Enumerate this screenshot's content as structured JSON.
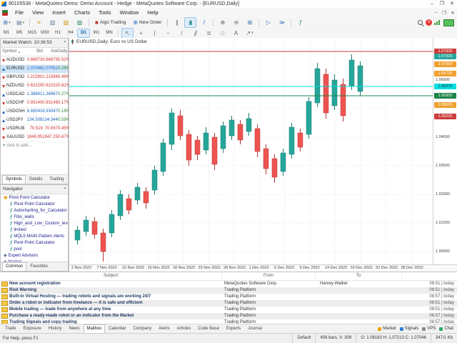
{
  "window": {
    "title": "90105538 - MetaQuotes-Demo: Demo Account - Hedge - MetaQuotes Software Corp. - [EURUSD,Daily]",
    "minimize": "–",
    "maximize": "❐",
    "close": "✕"
  },
  "menu": {
    "items": [
      "File",
      "View",
      "Insert",
      "Charts",
      "Tools",
      "Window",
      "Help"
    ]
  },
  "toolbar_main": {
    "algo_trading_label": "Algo Trading",
    "new_order_label": "New Order",
    "notification_count": "9"
  },
  "timeframes": {
    "buttons": [
      "M1",
      "M5",
      "M15",
      "M30",
      "H1",
      "H4",
      "D1",
      "W1",
      "MN"
    ],
    "active": "D1"
  },
  "icons": {
    "new-chart": "⊞",
    "profiles": "▤",
    "market-watch": "≡",
    "data-window": "▥",
    "navigator": "▧",
    "toolbox": "▨",
    "algo-trading": "■",
    "new-order": "⊕",
    "bar-chart": "∥",
    "candle-chart": "▮",
    "line-chart": "/",
    "zoom-in": "⊕",
    "zoom-out": "⊖",
    "tile-windows": "⊞",
    "auto-scroll": "▷",
    "chart-shift": "≫",
    "indicators": "ƒ",
    "cursor": "↖",
    "crosshair": "+",
    "vertical-line": "|",
    "horizontal-line": "−",
    "trend-line": "/",
    "channel": "∥",
    "fibonacci": "≣",
    "shapes": "□",
    "text-label": "A",
    "arrows": "↗",
    "more": "▾",
    "dropdown": "▾",
    "sort": "▲"
  },
  "market_watch": {
    "title": "Market Watch: 10:36:53",
    "columns": [
      "Symbol",
      "Bid",
      "Ask",
      "Daily..."
    ],
    "rows": [
      {
        "symbol": "AUDUSD",
        "bid": "0.66873",
        "ask": "0.66879",
        "daily": "0.52%",
        "dir": "down",
        "selected": false
      },
      {
        "symbol": "EURUSD",
        "bid": "1.07046",
        "ask": "1.07052",
        "daily": "0.26%",
        "dir": "up",
        "selected": true
      },
      {
        "symbol": "GBPUSD",
        "bid": "1.21590",
        "ask": "1.21596",
        "daily": "0.49%",
        "dir": "down",
        "selected": false
      },
      {
        "symbol": "NZDUSD",
        "bid": "0.62225",
        "ask": "0.62232",
        "daily": "0.81%",
        "dir": "down",
        "selected": false
      },
      {
        "symbol": "USDCAD",
        "bid": "1.38861",
        "ask": "1.38867",
        "daily": "0.27%",
        "dir": "up",
        "selected": false
      },
      {
        "symbol": "USDCHF",
        "bid": "0.93140",
        "ask": "0.93146",
        "daily": "0.17%",
        "dir": "down",
        "selected": false
      },
      {
        "symbol": "USDCNH",
        "bid": "6.93041",
        "ask": "6.93047",
        "daily": "0.19%",
        "dir": "up",
        "selected": false
      },
      {
        "symbol": "USDJPY",
        "bid": "134.308",
        "ask": "134.344",
        "daily": "0.59%",
        "dir": "up",
        "selected": false
      },
      {
        "symbol": "USDRUB",
        "bid": "70.516",
        "ask": "70.567",
        "daily": "0.45%",
        "dir": "down",
        "selected": false
      },
      {
        "symbol": "XAUUSD",
        "bid": "1846.95",
        "ask": "1847.25",
        "daily": "0.67%",
        "dir": "down",
        "selected": false
      }
    ],
    "add_row_label": "click to add...",
    "tabs": [
      "Symbols",
      "Details",
      "Trading",
      "Ticks"
    ],
    "active_tab": "Symbols"
  },
  "navigator": {
    "title": "Navigator",
    "items": [
      {
        "label": "Pivot Point Calculator",
        "icon": "folder",
        "level": 0
      },
      {
        "label": "Pivot Point Calculator",
        "icon": "indicator",
        "level": 1
      },
      {
        "label": "Autocharting_for_Calculator",
        "icon": "indicator",
        "level": 1
      },
      {
        "label": "Fibo_walls",
        "icon": "indicator",
        "level": 1
      },
      {
        "label": "High_and_Low_Custom_levels",
        "icon": "indicator",
        "level": 1
      },
      {
        "label": "limited",
        "icon": "indicator",
        "level": 1
      },
      {
        "label": "MQL5 MAIN Pattern Alerts",
        "icon": "indicator",
        "level": 1
      },
      {
        "label": "Pivot Point Calculator",
        "icon": "indicator",
        "level": 1
      },
      {
        "label": "pool",
        "icon": "indicator",
        "level": 1
      },
      {
        "label": "Expert Advisors",
        "icon": "experts",
        "level": 0
      },
      {
        "label": "Market",
        "icon": "market",
        "level": 0
      }
    ],
    "tabs": [
      "Common",
      "Favorites"
    ],
    "active_tab": "Common"
  },
  "chart": {
    "header": "EURUSD,Daily: Euro vs US Dollar",
    "chart_data": {
      "type": "candlestick",
      "symbol": "EURUSD",
      "timeframe": "Daily",
      "up_color": "#26a69a",
      "down_color": "#ef5350",
      "grid": true,
      "ylim": [
        1.0005,
        1.07975
      ],
      "x": [
        "2022-11-02",
        "2022-11-03",
        "2022-11-04",
        "2022-11-07",
        "2022-11-08",
        "2022-11-09",
        "2022-11-10",
        "2022-11-11",
        "2022-11-14",
        "2022-11-15",
        "2022-11-16",
        "2022-11-17",
        "2022-11-18",
        "2022-11-21",
        "2022-11-22",
        "2022-11-23",
        "2022-11-24",
        "2022-11-25",
        "2022-11-28",
        "2022-11-29",
        "2022-11-30",
        "2022-12-01",
        "2022-12-02",
        "2022-12-05",
        "2022-12-06",
        "2022-12-07",
        "2022-12-08",
        "2022-12-09",
        "2022-12-12",
        "2022-12-13",
        "2022-12-14",
        "2022-12-15",
        "2022-12-16",
        "2022-12-19"
      ],
      "ohlc": [
        [
          1.009,
          1.014,
          1.0075,
          1.0125
        ],
        [
          1.012,
          1.0175,
          1.0105,
          1.016
        ],
        [
          1.0155,
          1.017,
          1.0095,
          1.011
        ],
        [
          1.0115,
          1.013,
          1.0015,
          1.005
        ],
        [
          1.0115,
          1.0195,
          1.01,
          1.018
        ],
        [
          1.0175,
          1.0265,
          1.016,
          1.025
        ],
        [
          1.0235,
          1.025,
          1.018,
          1.0195
        ],
        [
          1.023,
          1.029,
          1.0215,
          1.0275
        ],
        [
          1.026,
          1.0275,
          1.02,
          1.022
        ],
        [
          1.0265,
          1.035,
          1.025,
          1.0335
        ],
        [
          1.033,
          1.0445,
          1.0315,
          1.043
        ],
        [
          1.0425,
          1.055,
          1.0405,
          1.0535
        ],
        [
          1.0525,
          1.0545,
          1.044,
          1.0455
        ],
        [
          1.046,
          1.0475,
          1.035,
          1.037
        ],
        [
          1.044,
          1.0455,
          1.037,
          1.039
        ],
        [
          1.0405,
          1.0485,
          1.039,
          1.0465
        ],
        [
          1.045,
          1.0465,
          1.0335,
          1.0355
        ],
        [
          1.041,
          1.0505,
          1.0395,
          1.049
        ],
        [
          1.0455,
          1.0525,
          1.044,
          1.051
        ],
        [
          1.0495,
          1.051,
          1.0425,
          1.044
        ],
        [
          1.047,
          1.0535,
          1.0455,
          1.0515
        ],
        [
          1.048,
          1.0495,
          1.038,
          1.04
        ],
        [
          1.041,
          1.0425,
          1.032,
          1.034
        ],
        [
          1.0375,
          1.039,
          1.029,
          1.031
        ],
        [
          1.033,
          1.041,
          1.0315,
          1.0395
        ],
        [
          1.039,
          1.05,
          1.0375,
          1.0485
        ],
        [
          1.0465,
          1.048,
          1.04,
          1.0415
        ],
        [
          1.046,
          1.059,
          1.0445,
          1.0575
        ],
        [
          1.057,
          1.071,
          1.0555,
          1.069
        ],
        [
          1.067,
          1.069,
          1.0515,
          1.0535
        ],
        [
          1.056,
          1.067,
          1.0545,
          1.065
        ],
        [
          1.0635,
          1.0655,
          1.0505,
          1.0525
        ],
        [
          1.063,
          1.074,
          1.0615,
          1.072
        ],
        [
          1.061,
          1.0715,
          1.0595,
          1.07
        ]
      ],
      "h_lines": [
        {
          "price": 1.075,
          "color": "#cc3b3b"
        },
        {
          "price": 1.06275,
          "color": "#00dfe0"
        },
        {
          "price": 1.0595,
          "color": "#1e8449"
        }
      ],
      "axis_tags": [
        {
          "price": "1.07500",
          "color": "#cc3b3b",
          "dark_text": false
        },
        {
          "price": "1.07325",
          "color": "#26a69a",
          "dark_text": false
        },
        {
          "price": "1.07050",
          "color": "#f0a030",
          "dark_text": false
        },
        {
          "price": "1.06725",
          "color": "#f0a030",
          "dark_text": false
        },
        {
          "price": "1.06275",
          "color": "#00dfe0",
          "dark_text": true
        },
        {
          "price": "1.05950",
          "color": "#1e8449",
          "dark_text": false
        },
        {
          "price": "1.05625",
          "color": "#f0a030",
          "dark_text": false
        },
        {
          "price": "1.05225",
          "color": "#cc3b3b",
          "dark_text": false
        }
      ],
      "y_ticks": [
        "1.06500",
        "1.04500",
        "1.03500",
        "1.02500",
        "1.01500",
        "1.00500"
      ],
      "x_ticks": [
        "2 Nov 2022",
        "7 Nov 2022",
        "10 Nov 2022",
        "15 Nov 2022",
        "18 Nov 2022",
        "23 Nov 2022",
        "28 Nov 2022",
        "1 Dec 2022",
        "6 Dec 2022",
        "9 Dec 2022",
        "14 Dec 2022",
        "19 Dec 2022",
        "22 Dec 2022",
        "28 Dec 2022"
      ]
    }
  },
  "toolbox": {
    "columns": [
      "Subject",
      "From",
      "To"
    ],
    "mails": [
      {
        "subject": "New account registration",
        "from": "MetaQuotes Software Corp.",
        "to": "Harvey Walker",
        "time": "08:51 | today"
      },
      {
        "subject": "Risk Warning",
        "from": "Trading Platform",
        "to": "",
        "time": "08:51 | today"
      },
      {
        "subject": "Built-in Virtual Hosting — trading robots and signals are working 24/7",
        "from": "Trading Platform",
        "to": "",
        "time": "08:57 | today"
      },
      {
        "subject": "Order a robot or indicator from freelance — it is safe and efficient",
        "from": "Trading Platform",
        "to": "",
        "time": "08:51 | today"
      },
      {
        "subject": "Mobile trading — trade from anywhere at any time",
        "from": "Trading Platform",
        "to": "",
        "time": "08:51 | today"
      },
      {
        "subject": "Purchase a ready-made robot or an indicator from the Market",
        "from": "Trading Platform",
        "to": "",
        "time": "08:57 | today"
      },
      {
        "subject": "Trading Signals and copy trading",
        "from": "Trading Platform",
        "to": "",
        "time": "08:57 | today"
      }
    ],
    "tabs": [
      "Trade",
      "Exposure",
      "History",
      "News",
      "Mailbox",
      "Calendar",
      "Company",
      "Alerts",
      "Articles",
      "Code Base",
      "Experts",
      "Journal"
    ],
    "active_tab": "Mailbox",
    "quick_links": [
      {
        "label": "Market",
        "color": "#f0a000"
      },
      {
        "label": "Signals",
        "color": "#2f7fd6"
      },
      {
        "label": "VPS",
        "color": "#7f8c8d"
      },
      {
        "label": "Chat",
        "color": "#27ae60"
      }
    ]
  },
  "status_bar": {
    "help": "For Help, press F1",
    "cells": [
      "Default",
      "456 bars, V: 309",
      "O: 1.06163  H: 1.07213  C: 1.07046",
      "347/1 Kb"
    ]
  }
}
